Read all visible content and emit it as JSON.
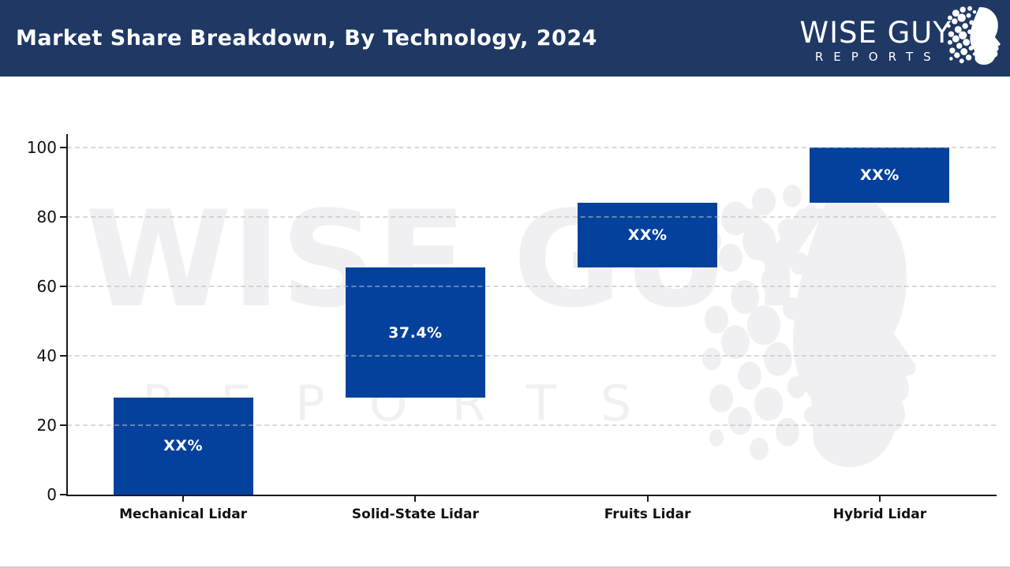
{
  "header": {
    "title": "Market Share Breakdown, By Technology, 2024",
    "logo": {
      "wordmark": "WISE GUY",
      "subtext": "REPORTS"
    }
  },
  "watermark": {
    "wordmark": "WISE GUY",
    "subtext": "REPORTS"
  },
  "colors": {
    "header_bg": "#1F3864",
    "bar": "#04419C",
    "bar_label": "#FFFFFF",
    "axis": "#1A1A1A",
    "tick_text": "#111111",
    "watermark": "#F0F0F2",
    "title_text": "#FFFFFF"
  },
  "chart_data": {
    "type": "bar",
    "subtype": "floating-waterfall",
    "title": "Market Share Breakdown, By Technology, 2024",
    "categories": [
      "Mechanical Lidar",
      "Solid-State Lidar",
      "Fruits Lidar",
      "Hybrid Lidar"
    ],
    "bars": [
      {
        "category": "Mechanical Lidar",
        "start": 0,
        "end": 28,
        "label": "XX%"
      },
      {
        "category": "Solid-State Lidar",
        "start": 28,
        "end": 65.4,
        "label": "37.4%"
      },
      {
        "category": "Fruits Lidar",
        "start": 65.4,
        "end": 84,
        "label": "XX%"
      },
      {
        "category": "Hybrid Lidar",
        "start": 84,
        "end": 100,
        "label": "XX%"
      }
    ],
    "xlabel": "",
    "ylabel": "",
    "ylim": [
      0,
      100
    ],
    "yticks": [
      0,
      20,
      40,
      60,
      80,
      100
    ],
    "grid": "horizontal-dashed",
    "legend": "none"
  }
}
